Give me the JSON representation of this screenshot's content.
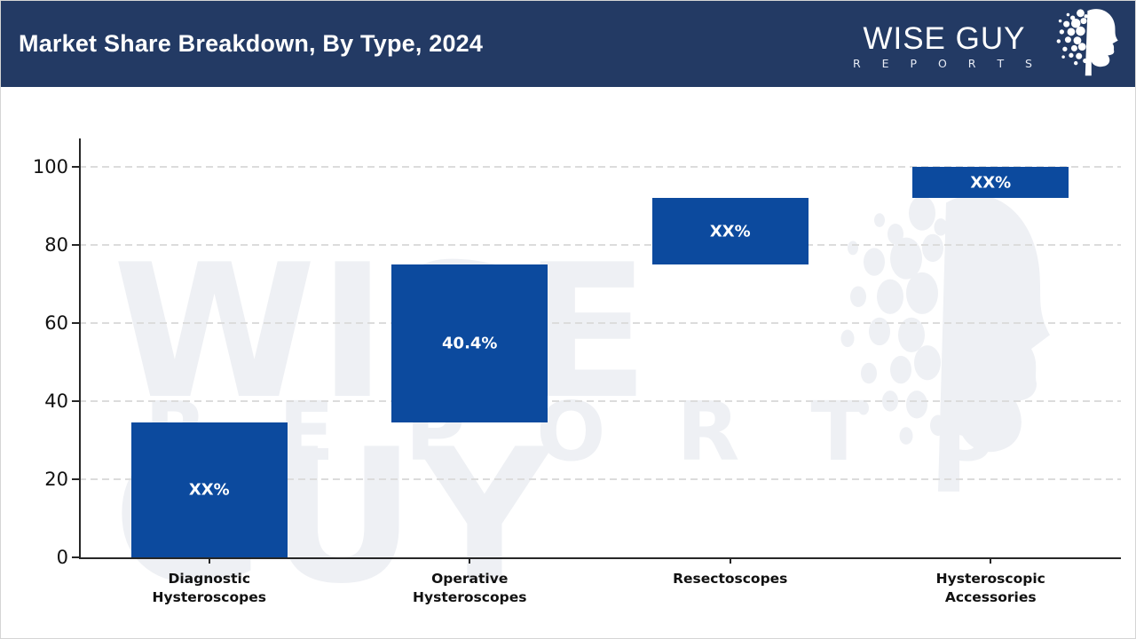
{
  "header": {
    "title": "Market Share Breakdown, By Type, 2024",
    "logo": {
      "brand_line1": "WISE GUY",
      "brand_line2": "R E P O R T S"
    }
  },
  "watermark": {
    "line1": "WISE GUY",
    "line2": "R E P O R T S",
    "head_icon": "dotted-head-profile"
  },
  "chart_data": {
    "type": "bar",
    "subtype": "floating-segment-waterfall",
    "title": "Market Share Breakdown, By Type, 2024",
    "xlabel": "",
    "ylabel": "",
    "ylim": [
      0,
      107
    ],
    "yticks": [
      0,
      20,
      40,
      60,
      80,
      100
    ],
    "grid": "horizontal-dashed",
    "legend": "none",
    "categories": [
      "Diagnostic Hysteroscopes",
      "Operative Hysteroscopes",
      "Resectoscopes",
      "Hysteroscopic Accessories"
    ],
    "category_label_lines": [
      [
        "Diagnostic",
        "Hysteroscopes"
      ],
      [
        "Operative",
        "Hysteroscopes"
      ],
      [
        "Resectoscopes"
      ],
      [
        "Hysteroscopic",
        "Accessories"
      ]
    ],
    "segments": [
      {
        "category": "Diagnostic Hysteroscopes",
        "start": 0,
        "end": 34.5,
        "label": "XX%"
      },
      {
        "category": "Operative Hysteroscopes",
        "start": 34.5,
        "end": 74.9,
        "label": "40.4%"
      },
      {
        "category": "Resectoscopes",
        "start": 74.9,
        "end": 92,
        "label": "XX%"
      },
      {
        "category": "Hysteroscopic Accessories",
        "start": 92,
        "end": 100,
        "label": "XX%"
      }
    ]
  },
  "colors": {
    "header_bg": "#233a64",
    "bar_fill": "#0c4a9e",
    "bar_label": "#ffffff",
    "grid_line": "#dcdcdc",
    "axis_line": "#262626",
    "watermark": "#eef0f4",
    "page_bg": "#ffffff"
  }
}
